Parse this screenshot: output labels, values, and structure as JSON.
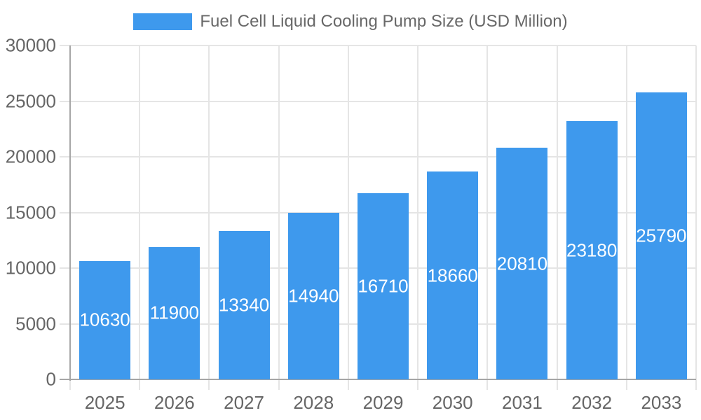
{
  "chart_data": {
    "type": "bar",
    "title": "Fuel Cell Liquid Cooling Pump Size (USD Million)",
    "legend_position": "top",
    "categories": [
      "2025",
      "2026",
      "2027",
      "2028",
      "2029",
      "2030",
      "2031",
      "2032",
      "2033"
    ],
    "values": [
      10630,
      11900,
      13340,
      14940,
      16710,
      18660,
      20810,
      23180,
      25790
    ],
    "yticks": [
      0,
      5000,
      10000,
      15000,
      20000,
      25000,
      30000
    ],
    "ylim": [
      0,
      30000
    ],
    "grid": true,
    "colors": {
      "bar": "#3E99ED",
      "value_label": "#FFFFFF",
      "axis_text": "#666666",
      "legend_text": "#686868",
      "gridline": "#E5E5E5",
      "axis_line": "#A6A6A6",
      "background": "#FFFFFF"
    }
  }
}
